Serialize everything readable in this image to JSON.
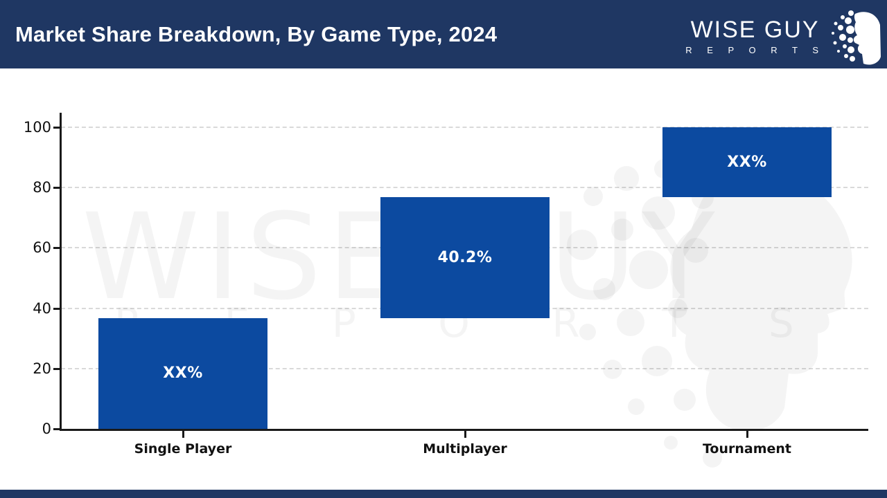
{
  "header": {
    "title": "Market Share Breakdown, By Game Type, 2024",
    "logo": {
      "line1": "WISE GUY",
      "line2": "R E P O R T S"
    }
  },
  "watermark": {
    "line1": "WISE GUY",
    "line2": "R E P O R T S"
  },
  "colors": {
    "header_bg": "#1f3763",
    "footer_bg": "#1f3763",
    "bar": "#0c4aa0",
    "bar_label": "#ffffff",
    "gridline": "#d9d9d9",
    "axis": "#1a1a1a",
    "tick_label": "#111111",
    "watermark": "rgba(0,0,0,0.045)"
  },
  "chart_data": {
    "type": "bar",
    "variant": "waterfall",
    "title": "Market Share Breakdown, By Game Type, 2024",
    "categories": [
      "Single Player",
      "Multiplayer",
      "Tournament"
    ],
    "bars": [
      {
        "category": "Single Player",
        "from": 0,
        "to": 36.7,
        "label": "XX%"
      },
      {
        "category": "Multiplayer",
        "from": 36.7,
        "to": 76.9,
        "label": "40.2%"
      },
      {
        "category": "Tournament",
        "from": 76.9,
        "to": 100,
        "label": "XX%"
      }
    ],
    "yticks": [
      0,
      20,
      40,
      60,
      80,
      100
    ],
    "ylim": [
      0,
      105
    ],
    "xlabel": "",
    "ylabel": "",
    "grid": "horizontal-dashed",
    "legend": "none"
  }
}
